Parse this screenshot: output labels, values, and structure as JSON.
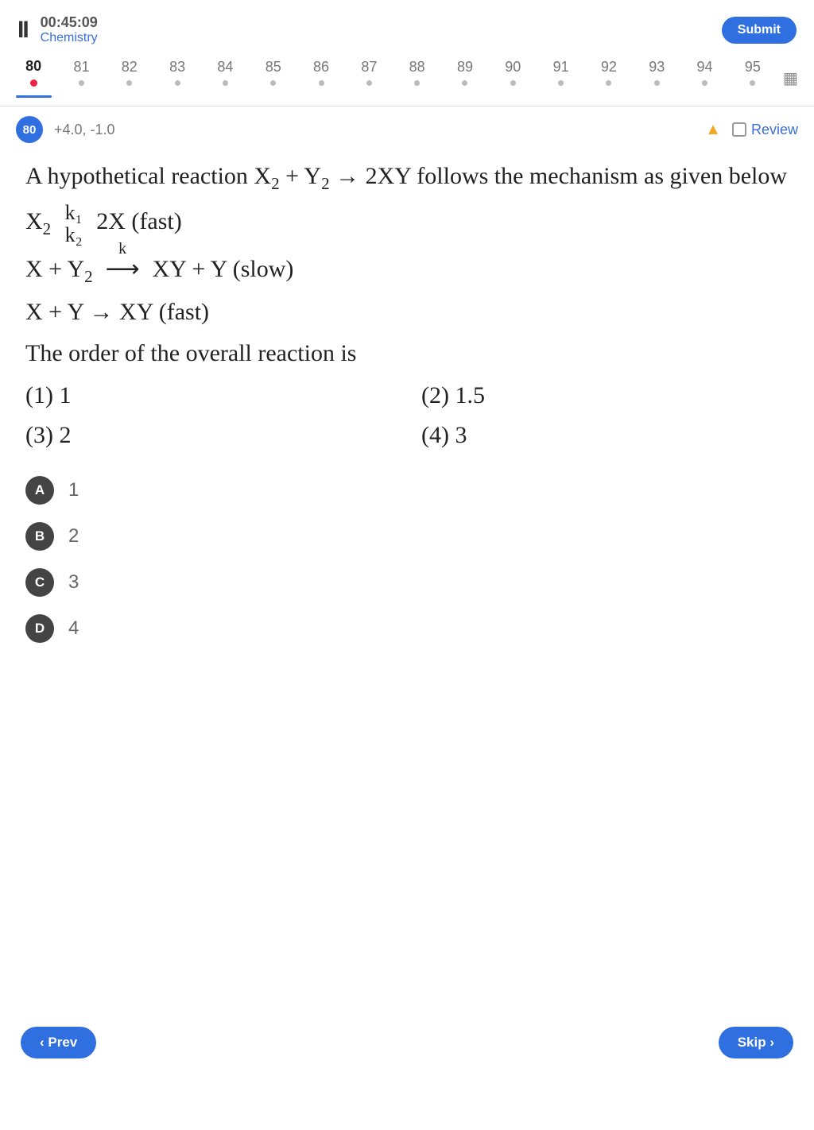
{
  "header": {
    "timer": "00:45:09",
    "subject": "Chemistry",
    "submit_label": "Submit"
  },
  "qnav": {
    "items": [
      "80",
      "81",
      "82",
      "83",
      "84",
      "85",
      "86",
      "87",
      "88",
      "89",
      "90",
      "91",
      "92",
      "93",
      "94",
      "95"
    ],
    "active_index": 0
  },
  "marks": {
    "qnum": "80",
    "scheme": "+4.0, -1.0",
    "review_label": "Review"
  },
  "question": {
    "intro_a": "A hypothetical reaction X",
    "intro_b": " + Y",
    "intro_c": " → 2XY follows the mechanism as given below",
    "mech1_left": "X",
    "mech1_k1": "k₁",
    "mech1_k2": "k₂",
    "mech1_right": "2X (fast)",
    "mech2": "X + Y₂ ⟶ XY + Y (slow)",
    "mech2_k": "k",
    "mech3": "X + Y → XY (fast)",
    "ask": "The order of the overall reaction is",
    "options": {
      "o1": "(1)  1",
      "o2": "(2)  1.5",
      "o3": "(3)  2",
      "o4": "(4)  3"
    }
  },
  "answers": [
    {
      "badge": "A",
      "label": "1"
    },
    {
      "badge": "B",
      "label": "2"
    },
    {
      "badge": "C",
      "label": "3"
    },
    {
      "badge": "D",
      "label": "4"
    }
  ],
  "footer": {
    "prev": "‹ Prev",
    "skip": "Skip ›"
  },
  "colors": {
    "primary": "#2f6fe0",
    "text": "#222222",
    "muted": "#777777",
    "badge_dark": "#444444"
  }
}
